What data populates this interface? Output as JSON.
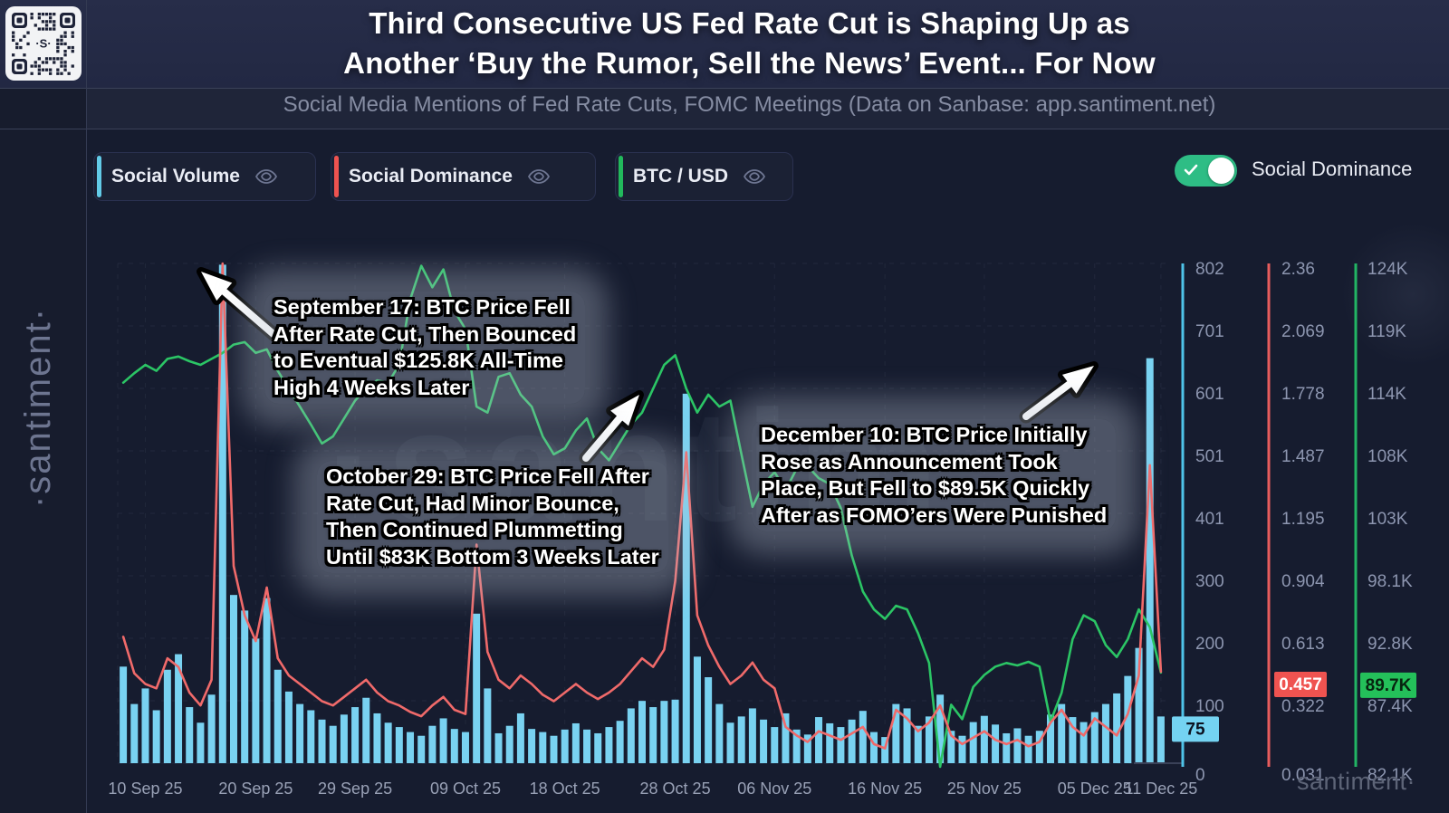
{
  "header": {
    "title_line1": "Third Consecutive US Fed Rate Cut is Shaping Up as",
    "title_line2": "Another ‘Buy the Rumor, Sell the News’ Event... For Now",
    "subtitle": "Social Media Mentions of Fed Rate Cuts, FOMC Meetings (Data on Sanbase: app.santiment.net)"
  },
  "branding": {
    "sidebar_watermark": "·santiment·",
    "corner_watermark": "santiment·",
    "center_watermark": "·santim"
  },
  "legend": {
    "items": [
      {
        "label": "Social Volume",
        "accent_color": "#62cbe8"
      },
      {
        "label": "Social Dominance",
        "accent_color": "#ef5350"
      },
      {
        "label": "BTC / USD",
        "accent_color": "#22b95c"
      }
    ]
  },
  "toggle": {
    "label": "Social Dominance",
    "state": "on",
    "color": "#2ebd85"
  },
  "annotations": [
    {
      "lines": [
        "September 17: BTC Price Fell",
        "After Rate Cut, Then Bounced",
        "to Eventual $125.8K All-Time",
        "High 4 Weeks Later"
      ]
    },
    {
      "lines": [
        "October 29: BTC Price Fell After",
        "Rate Cut, Had Minor Bounce,",
        "Then Continued Plummetting",
        "Until $83K Bottom 3 Weeks Later"
      ]
    },
    {
      "lines": [
        "December 10: BTC Price Initially",
        "Rose as Announcement Took",
        "Place, But Fell to $89.5K Quickly",
        "After as FOMO’ers Were Punished"
      ]
    }
  ],
  "chart_data": {
    "type": "bar",
    "note": "daily data, Sep 8 2025 - Dec 11 2025",
    "x_ticks": [
      {
        "label": "10 Sep 25",
        "index": 2
      },
      {
        "label": "20 Sep 25",
        "index": 12
      },
      {
        "label": "29 Sep 25",
        "index": 21
      },
      {
        "label": "09 Oct 25",
        "index": 31
      },
      {
        "label": "18 Oct 25",
        "index": 40
      },
      {
        "label": "28 Oct 25",
        "index": 50
      },
      {
        "label": "06 Nov 25",
        "index": 59
      },
      {
        "label": "16 Nov 25",
        "index": 69
      },
      {
        "label": "25 Nov 25",
        "index": 78
      },
      {
        "label": "05 Dec 25",
        "index": 88
      },
      {
        "label": "11 Dec 25",
        "index": 94
      }
    ],
    "axes": {
      "volume": {
        "range": [
          0,
          802
        ],
        "ticks": [
          "802",
          "701",
          "601",
          "501",
          "401",
          "300",
          "200",
          "100",
          "0"
        ],
        "last_value_badge": "75",
        "color": "#4fc3e8",
        "badge_bg": "#74d3f2",
        "badge_text": "#0c1220"
      },
      "dominance": {
        "range": [
          0.031,
          2.36
        ],
        "ticks": [
          "2.36",
          "2.069",
          "1.778",
          "1.487",
          "1.195",
          "0.904",
          "0.613",
          "0.322",
          "0.031"
        ],
        "last_value_badge": "0.457",
        "color": "#e85c5c",
        "badge_bg": "#ef5350",
        "badge_text": "#ffffff"
      },
      "price": {
        "range": [
          82.1,
          124
        ],
        "ticks": [
          "124K",
          "119K",
          "114K",
          "108K",
          "103K",
          "98.1K",
          "92.8K",
          "87.4K",
          "82.1K"
        ],
        "last_value_badge": "89.7K",
        "color": "#22b564",
        "badge_bg": "#24c05a",
        "badge_text": "#07230f"
      }
    },
    "series": [
      {
        "name": "Social Volume",
        "type": "bar",
        "axis": "volume",
        "color": "#79d2f1",
        "values": [
          155,
          95,
          120,
          85,
          150,
          175,
          90,
          65,
          110,
          800,
          270,
          245,
          200,
          265,
          150,
          115,
          95,
          85,
          70,
          60,
          78,
          90,
          105,
          80,
          65,
          58,
          50,
          44,
          60,
          72,
          55,
          50,
          240,
          120,
          48,
          60,
          80,
          55,
          50,
          44,
          54,
          64,
          54,
          48,
          58,
          68,
          88,
          100,
          90,
          100,
          102,
          593,
          171,
          138,
          95,
          65,
          75,
          88,
          70,
          58,
          80,
          54,
          46,
          74,
          64,
          58,
          70,
          84,
          50,
          42,
          95,
          88,
          60,
          75,
          110,
          52,
          44,
          66,
          76,
          62,
          48,
          56,
          44,
          52,
          78,
          95,
          74,
          66,
          82,
          95,
          112,
          140,
          185,
          650,
          75
        ]
      },
      {
        "name": "Social Dominance",
        "type": "line",
        "axis": "dominance",
        "color": "#f06a6a",
        "values": [
          0.62,
          0.45,
          0.4,
          0.38,
          0.52,
          0.48,
          0.36,
          0.3,
          0.42,
          2.36,
          0.95,
          0.72,
          0.6,
          0.85,
          0.52,
          0.44,
          0.4,
          0.36,
          0.32,
          0.3,
          0.34,
          0.38,
          0.42,
          0.36,
          0.32,
          0.3,
          0.27,
          0.25,
          0.3,
          0.34,
          0.28,
          0.26,
          1.05,
          0.55,
          0.42,
          0.38,
          0.44,
          0.4,
          0.35,
          0.32,
          0.36,
          0.4,
          0.36,
          0.33,
          0.36,
          0.4,
          0.46,
          0.52,
          0.48,
          0.56,
          0.88,
          1.48,
          0.72,
          0.58,
          0.48,
          0.4,
          0.44,
          0.5,
          0.42,
          0.38,
          0.2,
          0.16,
          0.13,
          0.18,
          0.16,
          0.14,
          0.17,
          0.2,
          0.12,
          0.1,
          0.28,
          0.24,
          0.18,
          0.22,
          0.3,
          0.16,
          0.12,
          0.15,
          0.18,
          0.14,
          0.12,
          0.14,
          0.11,
          0.13,
          0.22,
          0.28,
          0.2,
          0.16,
          0.24,
          0.2,
          0.16,
          0.26,
          0.44,
          1.42,
          0.457
        ]
      },
      {
        "name": "BTC / USD",
        "type": "line",
        "axis": "price",
        "color": "#2bc565",
        "values": [
          114.0,
          114.8,
          115.5,
          115.0,
          116.0,
          116.2,
          115.8,
          115.5,
          116.0,
          116.5,
          117.2,
          117.4,
          116.5,
          116.8,
          115.0,
          113.5,
          112.0,
          110.5,
          108.9,
          109.5,
          111.0,
          112.5,
          113.5,
          114.2,
          114.0,
          115.5,
          121.0,
          123.8,
          122.0,
          123.5,
          120.0,
          118.5,
          112.0,
          111.5,
          114.5,
          114.8,
          113.0,
          112.0,
          109.5,
          108.0,
          108.5,
          110.0,
          111.0,
          108.5,
          107.5,
          109.0,
          110.5,
          111.5,
          113.5,
          115.5,
          116.3,
          113.5,
          111.5,
          113.0,
          112.0,
          112.5,
          108.0,
          103.6,
          105.5,
          106.5,
          105.0,
          106.8,
          107.0,
          106.0,
          105.5,
          103.5,
          99.5,
          96.5,
          95.0,
          94.2,
          95.3,
          95.0,
          93.0,
          90.5,
          81.8,
          87.0,
          85.8,
          88.5,
          89.5,
          90.2,
          90.5,
          90.3,
          90.6,
          90.2,
          85.6,
          88.0,
          92.5,
          94.5,
          94.0,
          92.0,
          91.0,
          92.5,
          95.0,
          93.5,
          89.7
        ]
      }
    ]
  }
}
